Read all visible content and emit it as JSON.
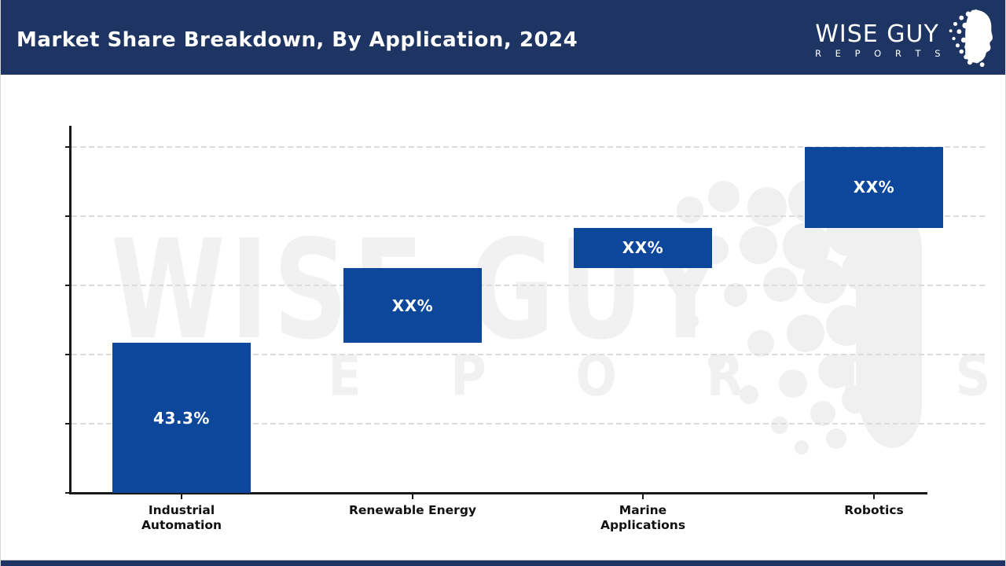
{
  "header": {
    "title": "Market Share Breakdown, By Application, 2024",
    "logo": {
      "main": "WISE GUY",
      "sub": "R E P O R T S",
      "head_icon": "dotted-head-profile"
    }
  },
  "watermark": {
    "line1": "WISE GUY",
    "line2": "R E P O R T S"
  },
  "chart_data": {
    "type": "bar",
    "subtype": "waterfall",
    "title": "Market Share Breakdown, By Application, 2024",
    "categories": [
      "Industrial Automation",
      "Renewable Energy",
      "Marine Applications",
      "Robotics"
    ],
    "category_lines": [
      [
        "Industrial",
        "Automation"
      ],
      [
        "Renewable Energy"
      ],
      [
        "Marine",
        "Applications"
      ],
      [
        "Robotics"
      ]
    ],
    "bars": [
      {
        "category": "Industrial Automation",
        "start": 0,
        "end": 43.3,
        "label": "43.3%"
      },
      {
        "category": "Renewable Energy",
        "start": 43.4,
        "end": 65.0,
        "label": "XX%"
      },
      {
        "category": "Marine Applications",
        "start": 65.0,
        "end": 76.6,
        "label": "XX%"
      },
      {
        "category": "Robotics",
        "start": 76.6,
        "end": 100,
        "label": "XX%"
      }
    ],
    "xlabel": "",
    "ylabel": "",
    "yticks": [
      0,
      20,
      40,
      60,
      80,
      100
    ],
    "ylim": [
      0,
      106
    ],
    "grid": true,
    "grid_style": "dashed",
    "legend": "none",
    "colors": {
      "bar": "#0c479c",
      "bar_label_text": "#ffffff",
      "header_background": "#1e3564",
      "axis": "#1a1a1a",
      "gridline": "#dcdcdc",
      "watermark": "#f0f0f0"
    }
  }
}
